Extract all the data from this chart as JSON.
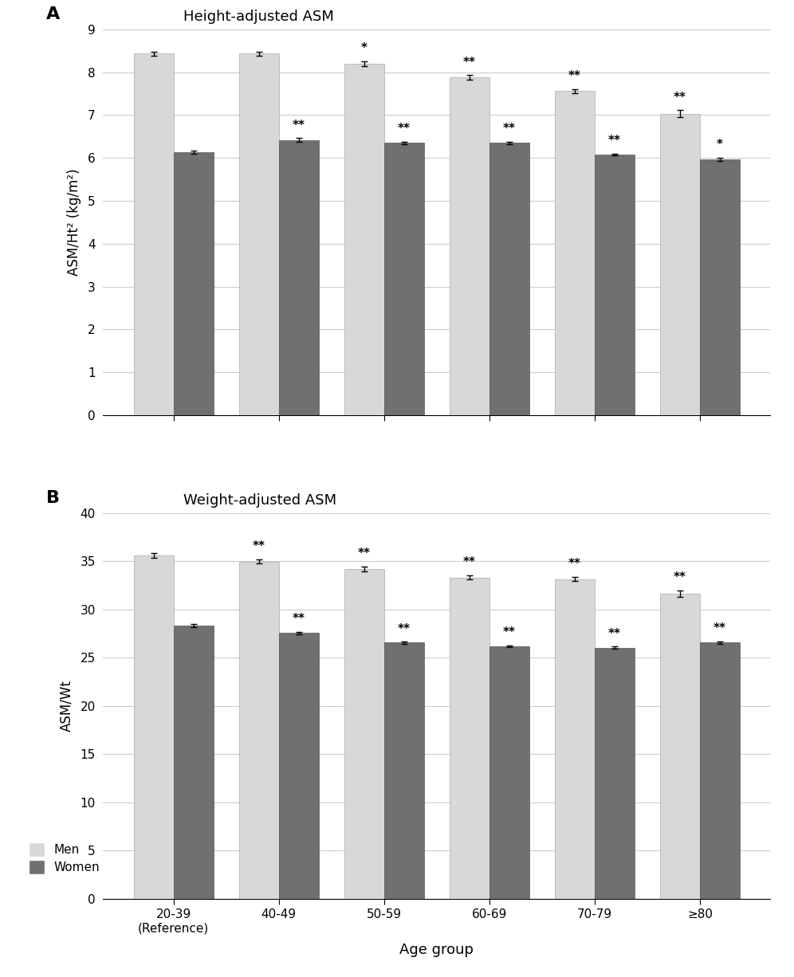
{
  "panel_A": {
    "title": "Height-adjusted ASM",
    "ylabel": "ASM/Ht² (kg/m²)",
    "ylim": [
      0,
      9
    ],
    "yticks": [
      0,
      1,
      2,
      3,
      4,
      5,
      6,
      7,
      8,
      9
    ],
    "men_values": [
      8.43,
      8.43,
      8.2,
      7.88,
      7.56,
      7.03
    ],
    "women_values": [
      6.13,
      6.42,
      6.35,
      6.35,
      6.08,
      5.97
    ],
    "men_errors": [
      0.04,
      0.04,
      0.05,
      0.05,
      0.05,
      0.08
    ],
    "women_errors": [
      0.04,
      0.04,
      0.03,
      0.03,
      0.02,
      0.04
    ],
    "men_sig": [
      "",
      "",
      "*",
      "**",
      "**",
      "**"
    ],
    "women_sig": [
      "",
      "**",
      "**",
      "**",
      "**",
      "*"
    ]
  },
  "panel_B": {
    "title": "Weight-adjusted ASM",
    "ylabel": "ASM/Wt",
    "ylim": [
      0,
      40
    ],
    "yticks": [
      0,
      5,
      10,
      15,
      20,
      25,
      30,
      35,
      40
    ],
    "men_values": [
      35.58,
      34.95,
      34.2,
      33.3,
      33.15,
      31.65
    ],
    "women_values": [
      28.35,
      27.55,
      26.55,
      26.2,
      26.05,
      26.55
    ],
    "men_errors": [
      0.22,
      0.22,
      0.22,
      0.22,
      0.22,
      0.35
    ],
    "women_errors": [
      0.15,
      0.12,
      0.1,
      0.1,
      0.1,
      0.15
    ],
    "men_sig": [
      "",
      "**",
      "**",
      "**",
      "**",
      "**"
    ],
    "women_sig": [
      "",
      "**",
      "**",
      "**",
      "**",
      "**"
    ]
  },
  "categories": [
    "20-39\n(Reference)",
    "40-49",
    "50-59",
    "60-69",
    "70-79",
    "≥80"
  ],
  "men_color": "#d8d8d8",
  "women_color": "#707070",
  "bar_width": 0.38,
  "xlabel": "Age group",
  "legend_labels": [
    "Men",
    "Women"
  ]
}
